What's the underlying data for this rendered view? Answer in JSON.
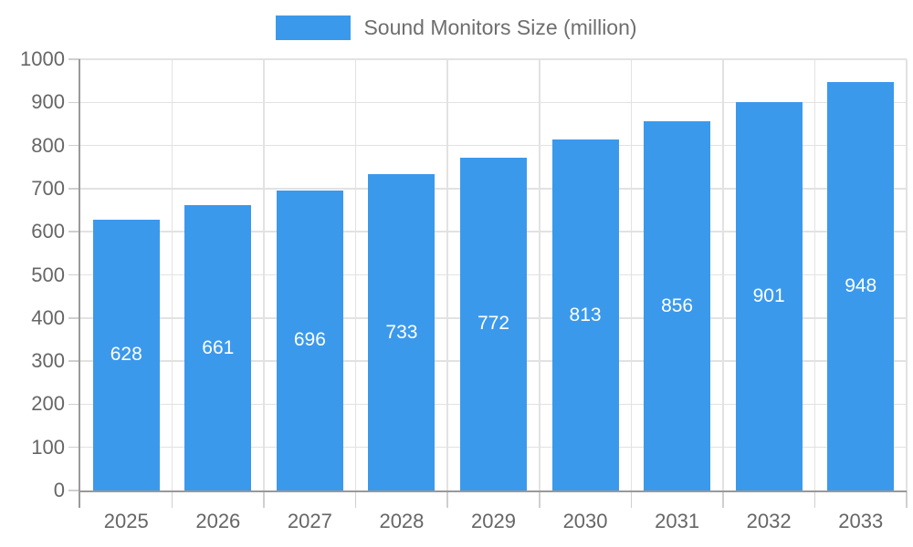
{
  "chart_data": {
    "type": "bar",
    "title": "",
    "categories": [
      "2025",
      "2026",
      "2027",
      "2028",
      "2029",
      "2030",
      "2031",
      "2032",
      "2033"
    ],
    "series": [
      {
        "name": "Sound Monitors Size (million)",
        "values": [
          628,
          661,
          696,
          733,
          772,
          813,
          856,
          901,
          948
        ]
      }
    ],
    "ylim": [
      0,
      1000
    ],
    "ytick_step": 100,
    "grid": true,
    "legend_position": "top",
    "bar_value_labels": "inside-center",
    "xlabel": "",
    "ylabel": ""
  },
  "colors": {
    "bar": "#3B99EC",
    "bar_label": "#FFFFFF",
    "axis": "#999999",
    "gridline": "#E2E2E2",
    "tick": "#CFCFCF",
    "axis_label": "#666666",
    "legend_text": "#6E6E6E",
    "background": "#FFFFFF"
  }
}
